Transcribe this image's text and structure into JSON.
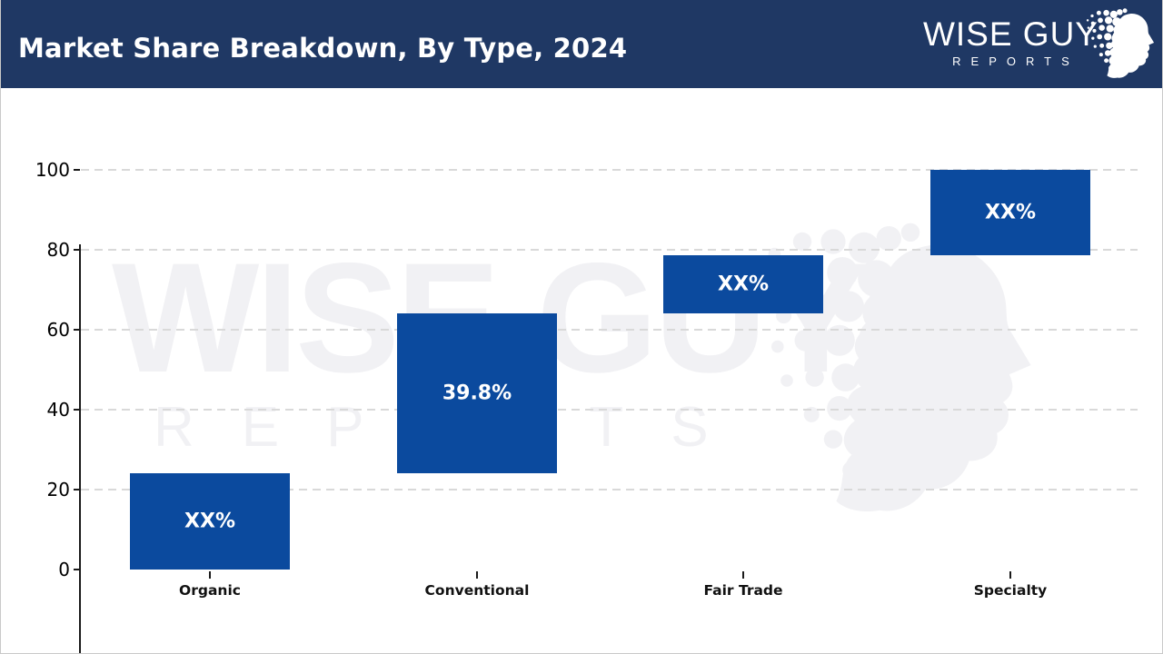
{
  "header": {
    "title": "Market Share Breakdown, By Type, 2024",
    "logo": {
      "name": "WISE GUY",
      "tagline": "REPORTS",
      "icon": "dotted-head-profile-icon"
    }
  },
  "watermark": {
    "name": "WISE GUY",
    "tagline": "REPORTS",
    "icon": "dotted-head-profile-icon"
  },
  "colors": {
    "header_bg": "#1F3864",
    "bar": "#0B4A9E",
    "bar_label": "#FFFFFF",
    "grid": "#D9D9D9",
    "axis": "#1A1A1A",
    "watermark": "#F1F1F4"
  },
  "chart_data": {
    "type": "bar",
    "subtype": "waterfall",
    "title": "Market Share Breakdown, By Type, 2024",
    "categories": [
      "Organic",
      "Conventional",
      "Fair Trade",
      "Specialty"
    ],
    "bars": [
      {
        "category": "Organic",
        "start": 0,
        "end": 24.2,
        "value": 24.2,
        "label": "XX%"
      },
      {
        "category": "Conventional",
        "start": 24.2,
        "end": 64.0,
        "value": 39.8,
        "label": "39.8%"
      },
      {
        "category": "Fair Trade",
        "start": 64.0,
        "end": 78.6,
        "value": 14.6,
        "label": "XX%"
      },
      {
        "category": "Specialty",
        "start": 78.6,
        "end": 100,
        "value": 21.4,
        "label": "XX%"
      }
    ],
    "xlabel": "",
    "ylabel": "",
    "ylim": [
      0,
      100
    ],
    "yticks": [
      0,
      20,
      40,
      60,
      80,
      100
    ],
    "grid": "horizontal-dashed",
    "legend": "none"
  }
}
